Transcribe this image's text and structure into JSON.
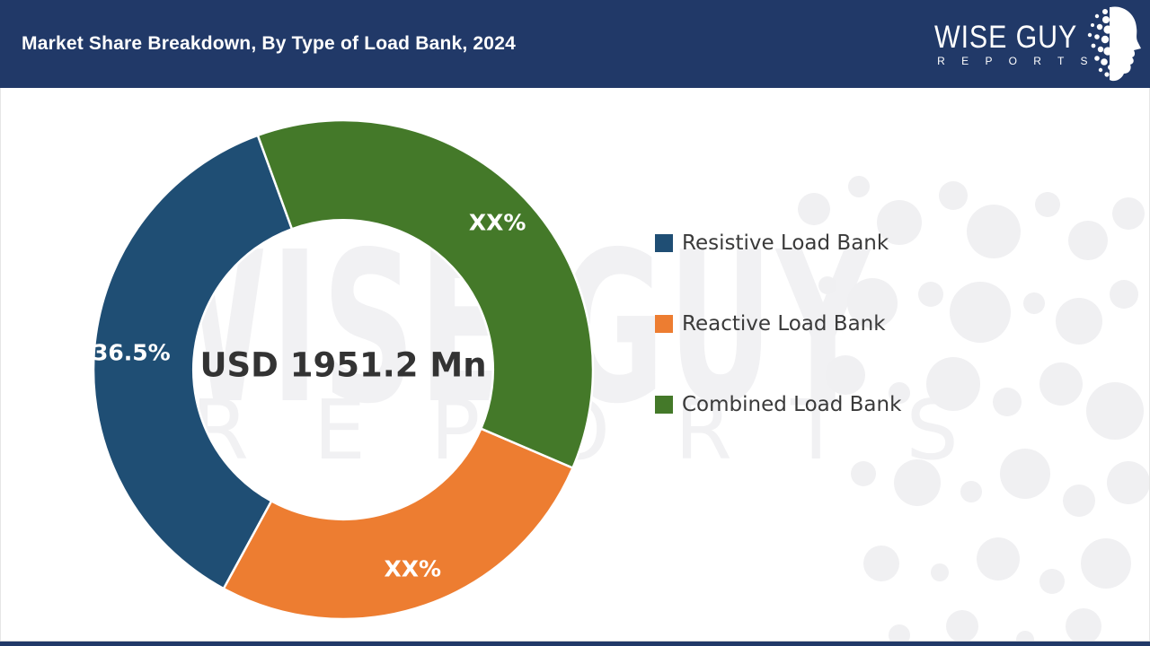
{
  "header": {
    "title": "Market Share Breakdown, By Type of Load Bank, 2024",
    "logo": {
      "line1": "WISE GUY",
      "line2": "R E P O R T S"
    }
  },
  "watermark": {
    "line1": "WISE GUY",
    "line2": "REPORTS"
  },
  "chart_data": {
    "type": "pie",
    "subtype": "donut",
    "title": "Market Share Breakdown, By Type of Load Bank, 2024",
    "center_label": "USD 1951.2 Mn",
    "categories": [
      "Resistive Load Bank",
      "Reactive Load Bank",
      "Combined Load Bank"
    ],
    "values": [
      36.5,
      26.5,
      37.0
    ],
    "slice_labels": [
      "36.5%",
      "XX%",
      "XX%"
    ],
    "colors": [
      "#1f4e74",
      "#ed7d31",
      "#447929"
    ],
    "start_angle_deg": 110,
    "direction": "counterclockwise",
    "legend_position": "right",
    "inner_radius_ratio": 0.6
  }
}
